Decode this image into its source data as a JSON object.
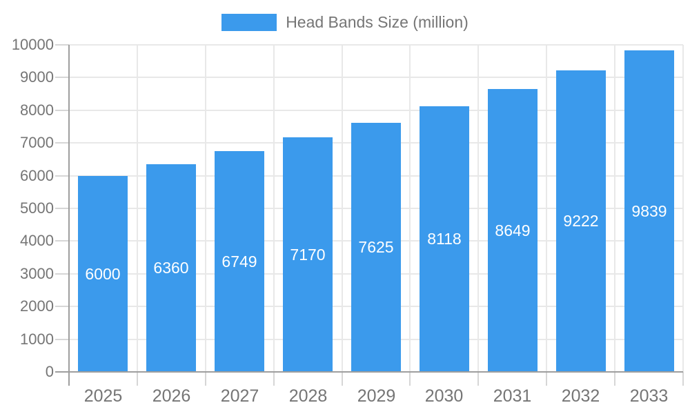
{
  "chart_data": {
    "type": "bar",
    "title": "",
    "categories": [
      "2025",
      "2026",
      "2027",
      "2028",
      "2029",
      "2030",
      "2031",
      "2032",
      "2033"
    ],
    "series": [
      {
        "name": "Head Bands Size (million)",
        "values": [
          6000,
          6360,
          6749,
          7170,
          7625,
          8118,
          8649,
          9222,
          9839
        ]
      }
    ],
    "xlabel": "",
    "ylabel": "",
    "ylim": [
      0,
      10000
    ],
    "ytick_interval": 1000,
    "ytick_labels": [
      "0",
      "1000",
      "2000",
      "3000",
      "4000",
      "5000",
      "6000",
      "7000",
      "8000",
      "9000",
      "10000"
    ],
    "grid": true,
    "legend_position": "top-center",
    "value_label_position": "inside-center",
    "colors": {
      "bar": "#3B9AEC",
      "axis_text": "#757575",
      "value_text": "#FFFFFF",
      "axis_line": "#9E9E9E",
      "grid_line": "#E8E8E8",
      "tick_line": "#D6D6D6",
      "background": "#FFFFFF"
    }
  }
}
